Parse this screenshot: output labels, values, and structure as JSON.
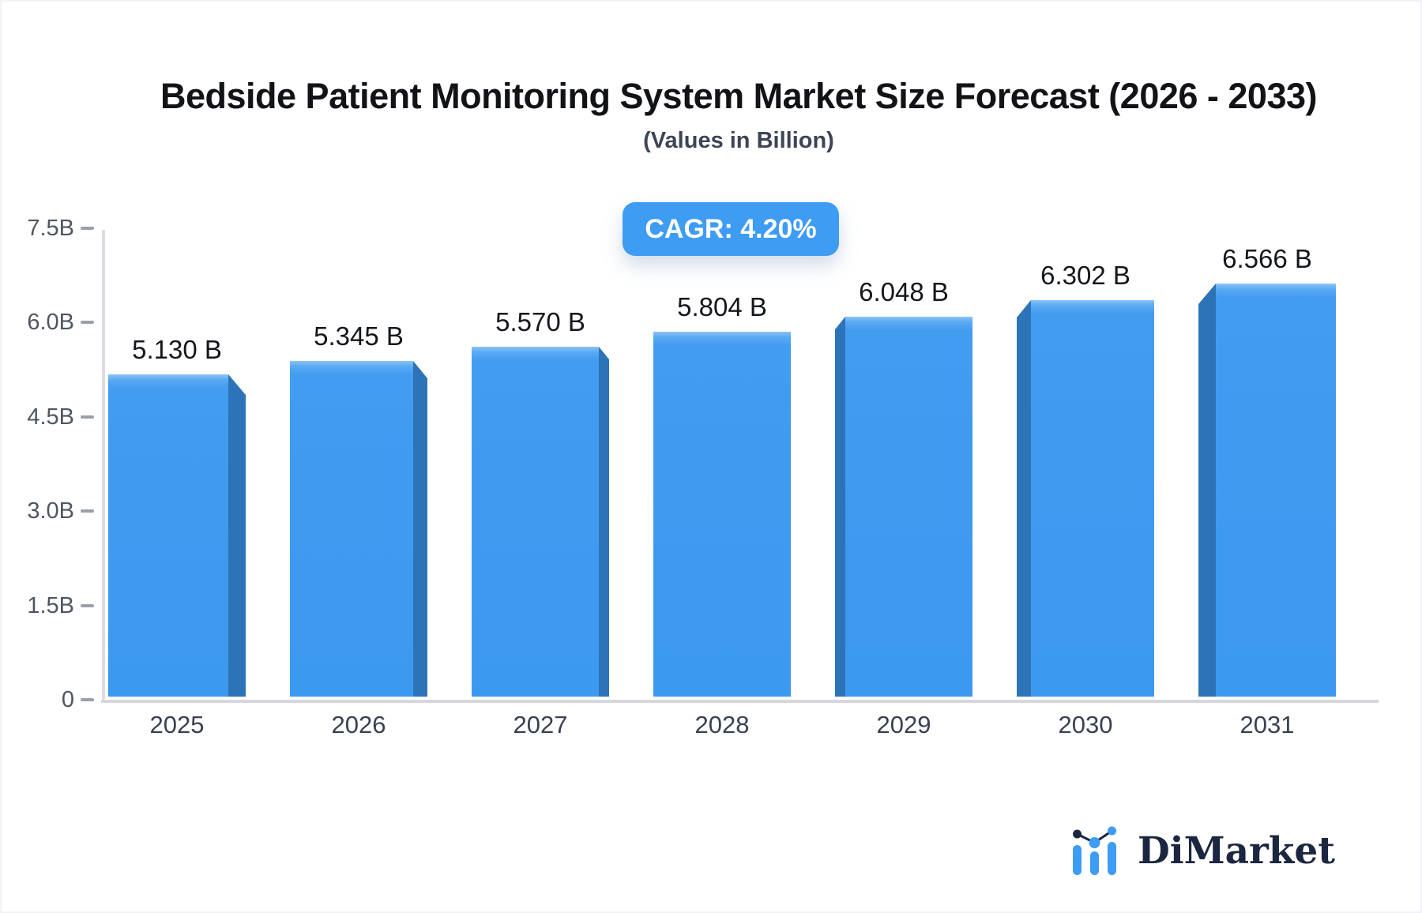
{
  "chart_data": {
    "type": "bar",
    "title": "Bedside Patient Monitoring System Market Size Forecast (2026 - 2033)",
    "subtitle": "(Values in Billion)",
    "badge": "CAGR: 4.20%",
    "categories": [
      "2025",
      "2026",
      "2027",
      "2028",
      "2029",
      "2030",
      "2031"
    ],
    "values": [
      5.13,
      5.345,
      5.57,
      5.804,
      6.048,
      6.302,
      6.566
    ],
    "value_labels": [
      "5.130 B",
      "5.345 B",
      "5.570 B",
      "5.804 B",
      "6.048 B",
      "6.302 B",
      "6.566 B"
    ],
    "xlabel": "",
    "ylabel": "",
    "ylim": [
      0,
      7.5
    ],
    "y_ticks": [
      {
        "value": 7.5,
        "label": "7.5B"
      },
      {
        "value": 6.0,
        "label": "6.0B"
      },
      {
        "value": 4.5,
        "label": "4.5B"
      },
      {
        "value": 3.0,
        "label": "3.0B"
      },
      {
        "value": 1.5,
        "label": "1.5B"
      },
      {
        "value": 0,
        "label": "0"
      }
    ],
    "grid": false,
    "legend": null,
    "colors": {
      "bar": "#3b99f0",
      "bar_side": "#2c74b7",
      "badge": "#3e9cf2",
      "axis": "#dcdde2"
    }
  },
  "branding": {
    "logo_text": "DiMarket",
    "logo_icon": "bar-line-chart-icon",
    "logo_color": "#1b2640",
    "logo_accent": "#3d9cf4"
  }
}
